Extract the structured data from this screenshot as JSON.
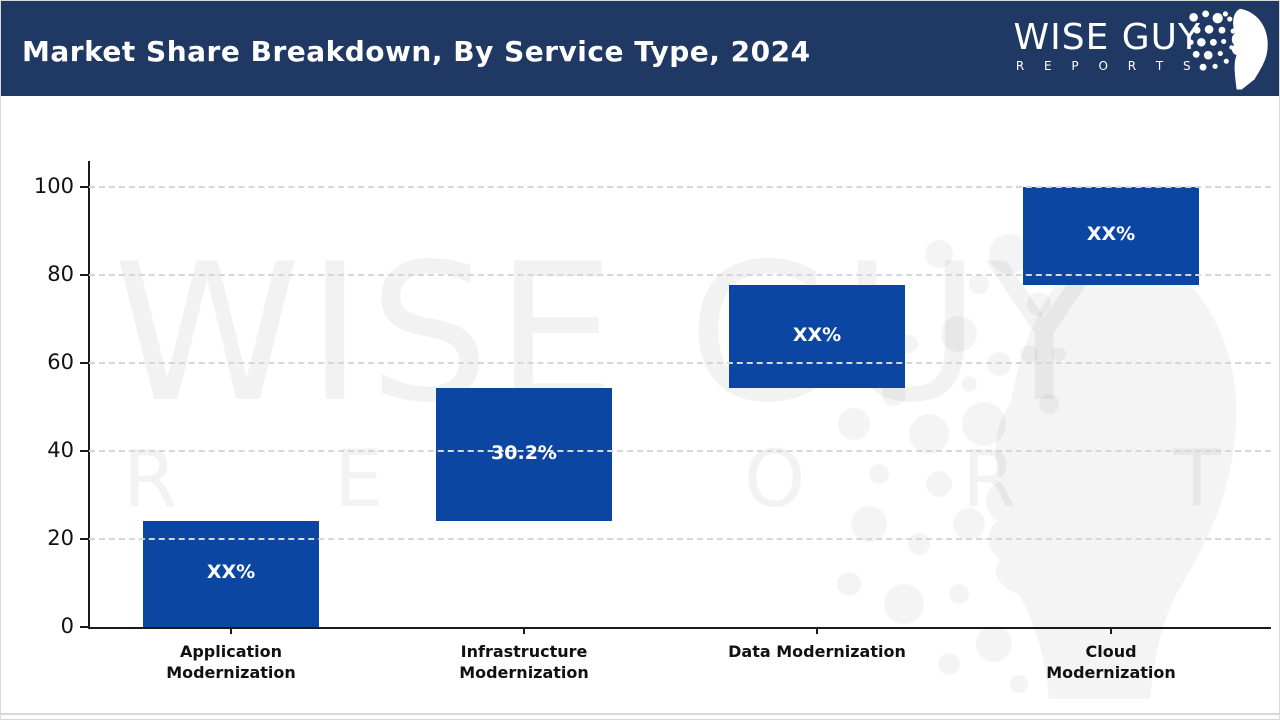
{
  "header": {
    "title": "Market Share Breakdown, By Service Type, 2024",
    "logo": {
      "name": "WISE GUY",
      "sub": "R E P O R T S"
    }
  },
  "watermark": {
    "name": "WISE GUY",
    "sub": "R E P O R T S"
  },
  "icons": {
    "logo_face": "dotted-face-profile",
    "watermark_face": "dotted-face-profile"
  },
  "colors": {
    "header_bg": "#1f3864",
    "bar": "#0b46a3",
    "bar_label": "#ffffff",
    "axis": "#1a1a1a",
    "grid": "#d7d7d7",
    "tick_text": "#111111"
  },
  "chart_data": {
    "type": "bar",
    "subtype": "waterfall",
    "title": "Market Share Breakdown, By Service Type, 2024",
    "categories": [
      "Application\nModernization",
      "Infrastructure\nModernization",
      "Data Modernization",
      "Cloud\nModernization"
    ],
    "segments": [
      {
        "category": "Application Modernization",
        "start": 0,
        "end": 24.1,
        "label": "XX%"
      },
      {
        "category": "Infrastructure Modernization",
        "start": 24.1,
        "end": 54.3,
        "label": "30.2%"
      },
      {
        "category": "Data Modernization",
        "start": 54.3,
        "end": 77.7,
        "label": "XX%"
      },
      {
        "category": "Cloud Modernization",
        "start": 77.7,
        "end": 100,
        "label": "XX%"
      }
    ],
    "xlabel": "",
    "ylabel": "",
    "ylim": [
      0,
      100
    ],
    "yticks": [
      0,
      20,
      40,
      60,
      80,
      100
    ],
    "grid": "horizontal-dashed-over-bars",
    "legend": "none"
  }
}
